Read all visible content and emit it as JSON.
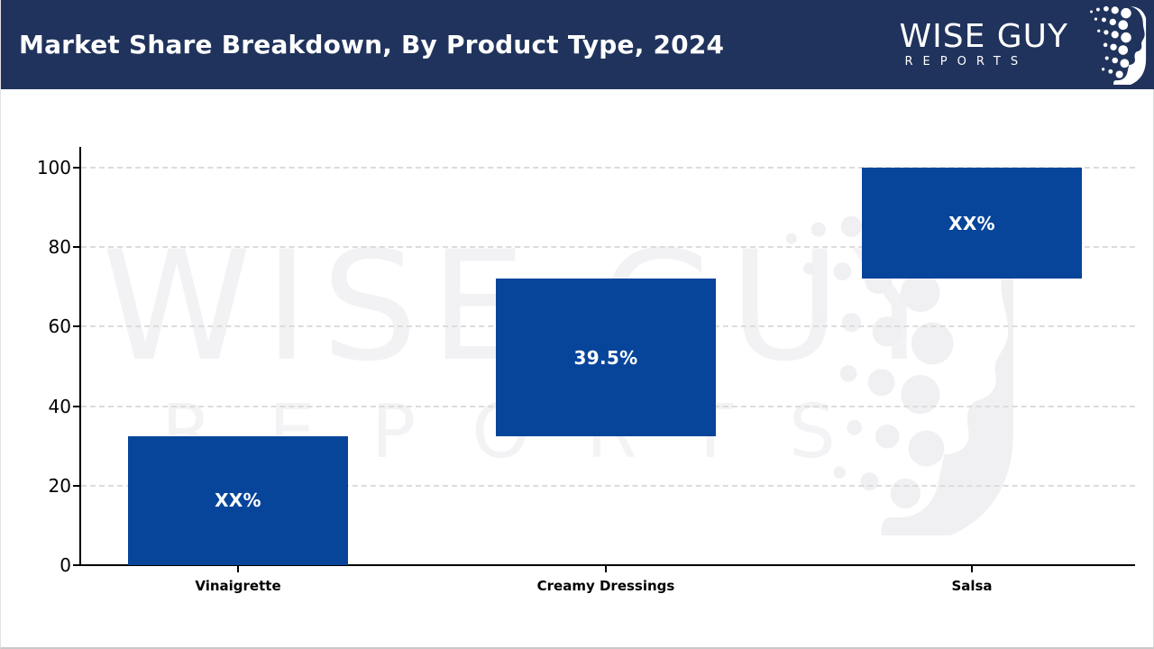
{
  "header": {
    "title": "Market Share Breakdown, By Product Type, 2024",
    "logo": {
      "name": "WISE GUY",
      "subtitle": "REPORTS"
    }
  },
  "watermark": {
    "line1": "WISE GUY",
    "line2": "REPORTS"
  },
  "colors": {
    "header_background": "#20335c",
    "bar_fill": "#07459b",
    "bar_label_text": "#ffffff",
    "gridline": "#dcdcdc",
    "axis": "#000000"
  },
  "chart_data": {
    "type": "bar",
    "subtype": "waterfall-floating-bars",
    "title": "Market Share Breakdown, By Product Type, 2024",
    "categories": [
      "Vinaigrette",
      "Creamy Dressings",
      "Salsa"
    ],
    "segments": [
      {
        "category": "Vinaigrette",
        "start": 0,
        "end": 32.5,
        "label": "XX%"
      },
      {
        "category": "Creamy Dressings",
        "start": 32.5,
        "end": 72,
        "label": "39.5%"
      },
      {
        "category": "Salsa",
        "start": 72,
        "end": 100,
        "label": "XX%"
      }
    ],
    "xlabel": "",
    "ylabel": "",
    "ylim": [
      0,
      100
    ],
    "yticks": [
      0,
      20,
      40,
      60,
      80,
      100
    ],
    "grid": "horizontal-dashed",
    "legend": "none"
  }
}
